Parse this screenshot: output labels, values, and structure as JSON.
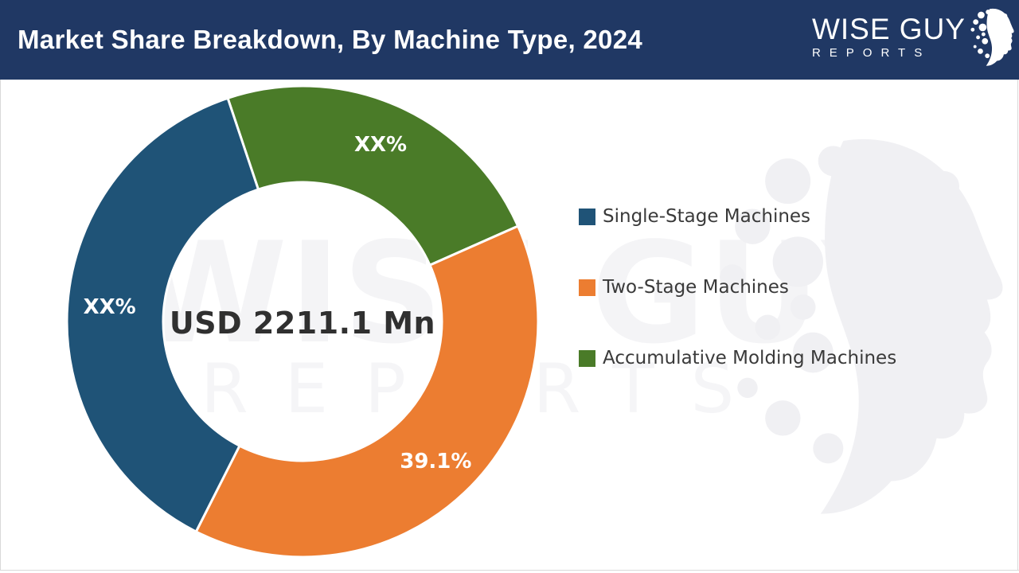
{
  "header": {
    "title": "Market Share Breakdown, By Machine Type, 2024",
    "bg_color": "#203864",
    "logo": {
      "line1": "WISE GUY",
      "line2": "REPORTS"
    }
  },
  "watermark": {
    "line1": "WISE GUY",
    "line2": "REPORTS"
  },
  "chart_data": {
    "type": "pie",
    "subtype": "donut",
    "title": "Market Share Breakdown, By Machine Type, 2024",
    "center_label": "USD 2211.1 Mn",
    "legend_position": "right",
    "start_angle_deg": -18.5,
    "clockwise_draw_order": [
      2,
      1,
      0
    ],
    "inner_radius_ratio": 0.59,
    "series": [
      {
        "name": "Single-Stage Machines",
        "pct_estimate": 37.4,
        "display_label": "XX%",
        "color": "#1F5377"
      },
      {
        "name": "Two-Stage Machines",
        "pct_estimate": 39.1,
        "display_label": "39.1%",
        "color": "#EC7D31"
      },
      {
        "name": "Accumulative Molding Machines",
        "pct_estimate": 23.5,
        "display_label": "XX%",
        "color": "#4A7B28"
      }
    ]
  }
}
